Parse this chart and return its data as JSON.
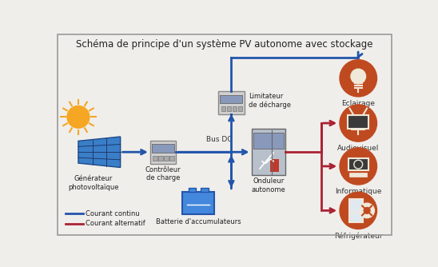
{
  "title": "Schéma de principe d'un système PV autonome avec stockage",
  "title_fontsize": 8.5,
  "bg_color": "#f0eeeb",
  "blue": "#2255aa",
  "red": "#aa2233",
  "orange_circle": "#c04a20",
  "legend_blue": "Courant continu",
  "legend_red": "Courant alternatif",
  "labels": {
    "generateur": "Générateur\nphotovoltaïque",
    "controleur": "Contrôleur\nde charge",
    "bus_dc": "Bus DC",
    "limitateur": "Limitateur\nde décharge",
    "onduleur": "Onduleur\nautonome",
    "batterie": "Batterie d'accumulateurs",
    "eclairage": "Eclairage",
    "audiovisuel": "Audiovisuel",
    "informatique": "Informatique",
    "refrigerateur": "Réfrigérateur"
  }
}
